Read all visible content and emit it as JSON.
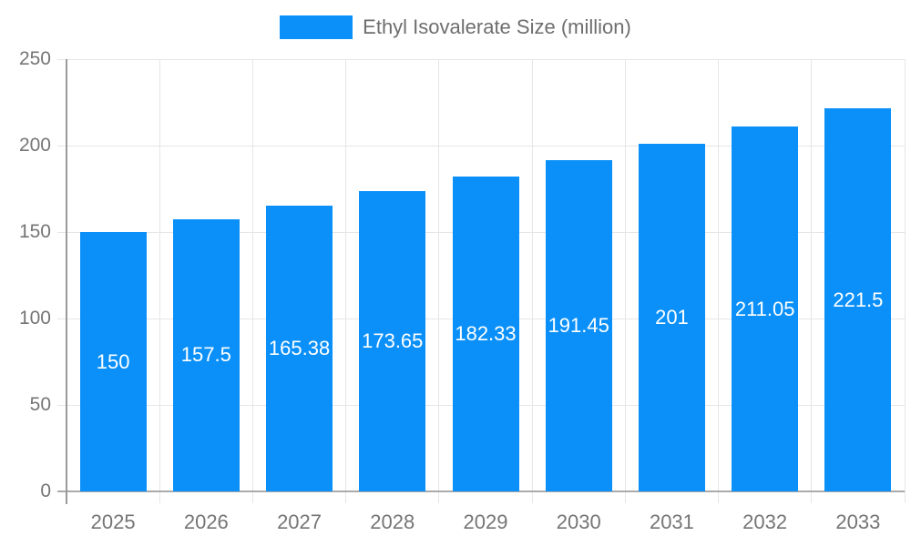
{
  "legend": {
    "label": "Ethyl Isovalerate Size (million)"
  },
  "chart_data": {
    "type": "bar",
    "title": "Ethyl Isovalerate Size (million)",
    "series_name": "Ethyl Isovalerate Size (million)",
    "categories": [
      "2025",
      "2026",
      "2027",
      "2028",
      "2029",
      "2030",
      "2031",
      "2032",
      "2033"
    ],
    "values": [
      150,
      157.5,
      165.38,
      173.65,
      182.33,
      191.45,
      201,
      211.05,
      221.5
    ],
    "value_labels": [
      "150",
      "157.5",
      "165.38",
      "173.65",
      "182.33",
      "191.45",
      "201",
      "211.05",
      "221.5"
    ],
    "xlabel": "",
    "ylabel": "",
    "ylim": [
      0,
      250
    ],
    "yticks": [
      0,
      50,
      100,
      150,
      200,
      250
    ],
    "grid": true,
    "legend_position": "top-center",
    "colors": {
      "bar": "#0a90f8",
      "axis_text": "#757575",
      "legend_text": "#6e6e6e",
      "grid_line": "#e6e6e6",
      "axis_line_y": "#9a9a9a",
      "axis_line_x": "#aaaaaa",
      "value_label": "#ffffff",
      "background": "#ffffff"
    }
  }
}
